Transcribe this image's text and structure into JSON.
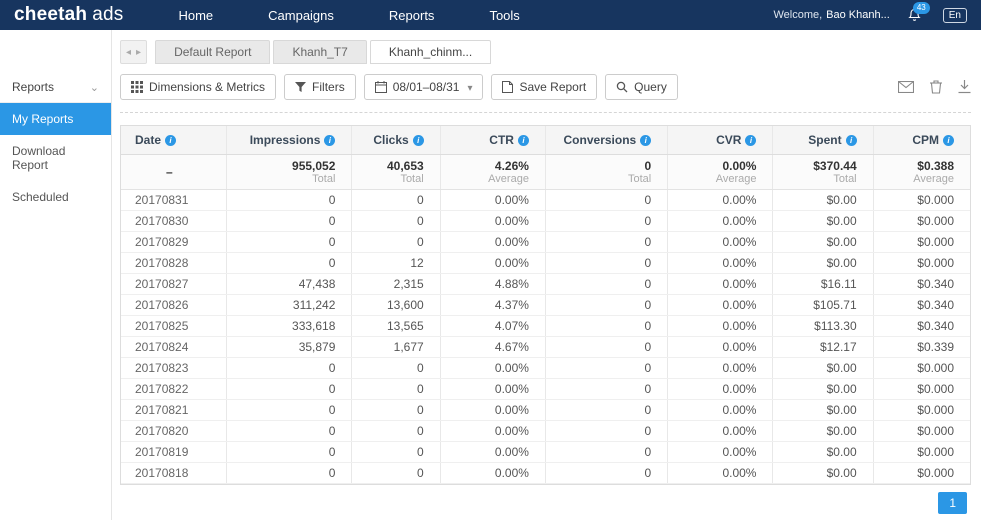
{
  "navbar": {
    "brand_bold": "cheetah",
    "brand_light": "ads",
    "items": [
      {
        "label": "Home"
      },
      {
        "label": "Campaigns"
      },
      {
        "label": "Reports"
      },
      {
        "label": "Tools"
      }
    ],
    "welcome": "Welcome,",
    "username": "Bao Khanh...",
    "notification_count": "43",
    "language": "En"
  },
  "sidebar": {
    "section": "Reports",
    "items": [
      {
        "label": "My Reports"
      },
      {
        "label": "Download Report"
      },
      {
        "label": "Scheduled"
      }
    ]
  },
  "tabs": [
    {
      "label": "Default Report"
    },
    {
      "label": "Khanh_T7"
    },
    {
      "label": "Khanh_chinm..."
    }
  ],
  "toolbar": {
    "dimensions_metrics": "Dimensions & Metrics",
    "filters": "Filters",
    "date_range": "08/01–08/31",
    "save_report": "Save Report",
    "query": "Query"
  },
  "table": {
    "columns": [
      "Date",
      "Impressions",
      "Clicks",
      "CTR",
      "Conversions",
      "CVR",
      "Spent",
      "CPM"
    ],
    "totals": [
      {
        "value": "–",
        "sub": ""
      },
      {
        "value": "955,052",
        "sub": "Total"
      },
      {
        "value": "40,653",
        "sub": "Total"
      },
      {
        "value": "4.26%",
        "sub": "Average"
      },
      {
        "value": "0",
        "sub": "Total"
      },
      {
        "value": "0.00%",
        "sub": "Average"
      },
      {
        "value": "$370.44",
        "sub": "Total"
      },
      {
        "value": "$0.388",
        "sub": "Average"
      }
    ],
    "rows": [
      [
        "20170831",
        "0",
        "0",
        "0.00%",
        "0",
        "0.00%",
        "$0.00",
        "$0.000"
      ],
      [
        "20170830",
        "0",
        "0",
        "0.00%",
        "0",
        "0.00%",
        "$0.00",
        "$0.000"
      ],
      [
        "20170829",
        "0",
        "0",
        "0.00%",
        "0",
        "0.00%",
        "$0.00",
        "$0.000"
      ],
      [
        "20170828",
        "0",
        "12",
        "0.00%",
        "0",
        "0.00%",
        "$0.00",
        "$0.000"
      ],
      [
        "20170827",
        "47,438",
        "2,315",
        "4.88%",
        "0",
        "0.00%",
        "$16.11",
        "$0.340"
      ],
      [
        "20170826",
        "311,242",
        "13,600",
        "4.37%",
        "0",
        "0.00%",
        "$105.71",
        "$0.340"
      ],
      [
        "20170825",
        "333,618",
        "13,565",
        "4.07%",
        "0",
        "0.00%",
        "$113.30",
        "$0.340"
      ],
      [
        "20170824",
        "35,879",
        "1,677",
        "4.67%",
        "0",
        "0.00%",
        "$12.17",
        "$0.339"
      ],
      [
        "20170823",
        "0",
        "0",
        "0.00%",
        "0",
        "0.00%",
        "$0.00",
        "$0.000"
      ],
      [
        "20170822",
        "0",
        "0",
        "0.00%",
        "0",
        "0.00%",
        "$0.00",
        "$0.000"
      ],
      [
        "20170821",
        "0",
        "0",
        "0.00%",
        "0",
        "0.00%",
        "$0.00",
        "$0.000"
      ],
      [
        "20170820",
        "0",
        "0",
        "0.00%",
        "0",
        "0.00%",
        "$0.00",
        "$0.000"
      ],
      [
        "20170819",
        "0",
        "0",
        "0.00%",
        "0",
        "0.00%",
        "$0.00",
        "$0.000"
      ],
      [
        "20170818",
        "0",
        "0",
        "0.00%",
        "0",
        "0.00%",
        "$0.00",
        "$0.000"
      ]
    ]
  },
  "pagination": {
    "page": "1"
  }
}
